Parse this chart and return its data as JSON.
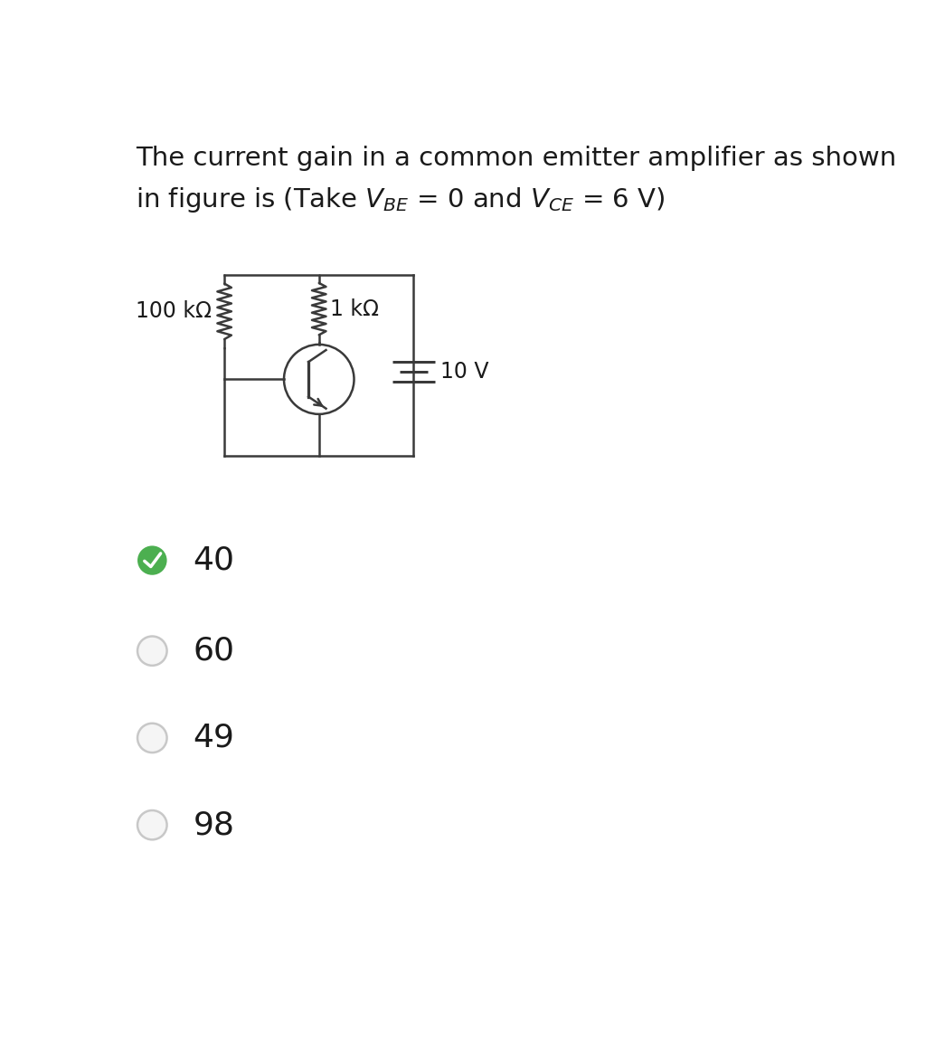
{
  "bg_color": "#ffffff",
  "text_color": "#1a1a1a",
  "circuit_color": "#3a3a3a",
  "title_line1": "The current gain in a common emitter amplifier as shown",
  "title_line2": "in figure is (Take $V_{BE}$ = 0 and $V_{CE}$ = 6 V)",
  "resistor_100k_label": "100 kΩ",
  "resistor_1k_label": "1 kΩ",
  "voltage_label": "10 V",
  "options": [
    "40",
    "60",
    "49",
    "98"
  ],
  "correct_index": 0,
  "correct_color": "#4caf50",
  "font_size_title": 21,
  "font_size_options": 26,
  "font_size_circuit": 17
}
